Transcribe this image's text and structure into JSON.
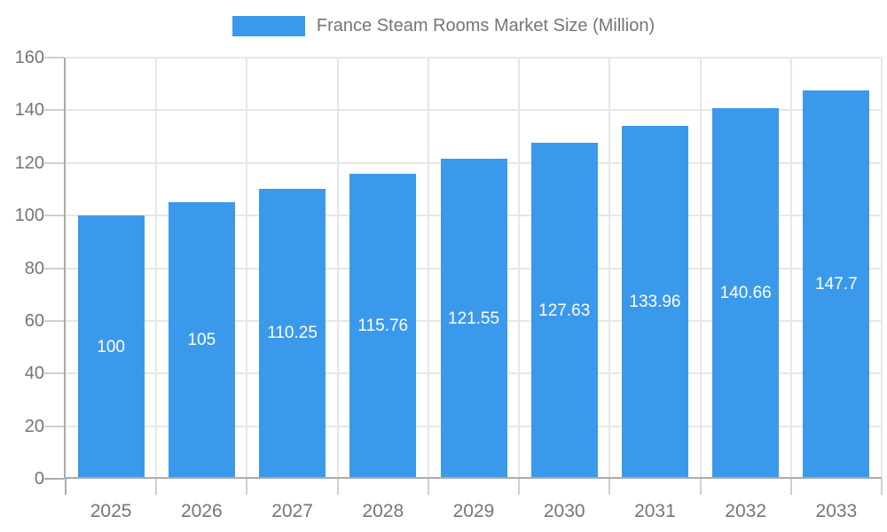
{
  "chart_data": {
    "type": "bar",
    "title": "France Steam Rooms Market Size (Million)",
    "categories": [
      "2025",
      "2026",
      "2027",
      "2028",
      "2029",
      "2030",
      "2031",
      "2032",
      "2033"
    ],
    "values": [
      100,
      105,
      110.25,
      115.76,
      121.55,
      127.63,
      133.96,
      140.66,
      147.7
    ],
    "value_labels": [
      "100",
      "105",
      "110.25",
      "115.76",
      "121.55",
      "127.63",
      "133.96",
      "140.66",
      "147.7"
    ],
    "xlabel": "",
    "ylabel": "",
    "ylim": [
      0,
      160
    ],
    "ytick_step": 20,
    "ytick_labels": [
      "0",
      "20",
      "40",
      "60",
      "80",
      "100",
      "120",
      "140",
      "160"
    ],
    "grid": true,
    "legend_position": "top",
    "value_label_position": "center-inside-bar",
    "colors": {
      "bar": "#3b99ec",
      "grid_line": "#e7e7e7",
      "axis_line": "#ababab",
      "tick_line": "#cfcfcf",
      "text": "#757575",
      "value_label": "#ffffff",
      "background": "#ffffff"
    }
  }
}
